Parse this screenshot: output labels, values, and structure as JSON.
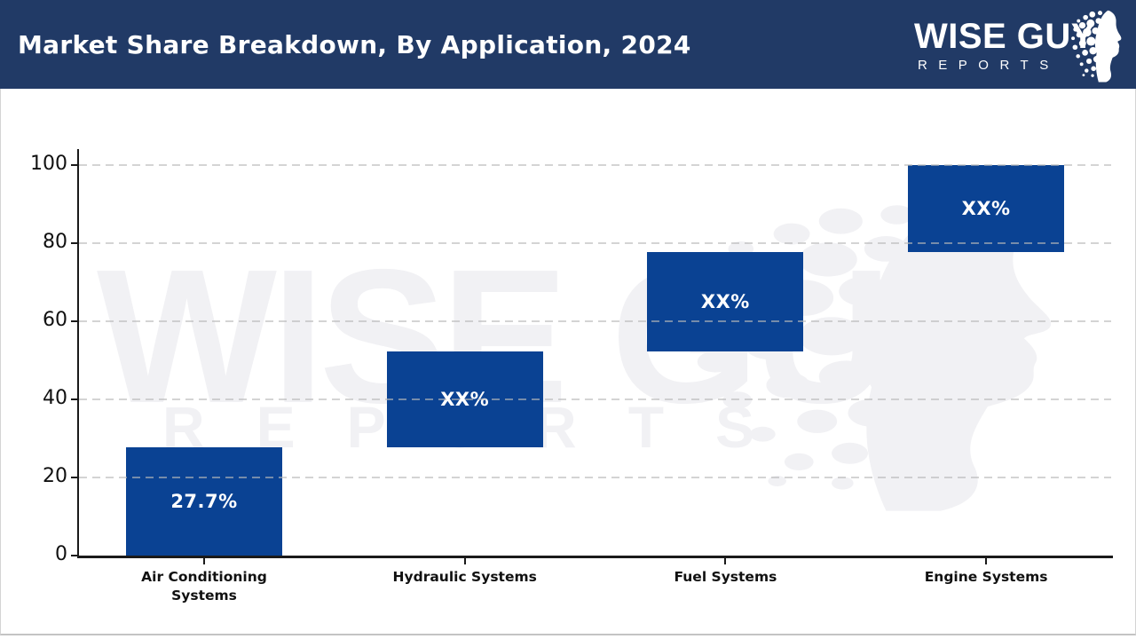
{
  "header": {
    "title": "Market Share Breakdown, By Application, 2024",
    "logo": {
      "line1": "WISE GUY",
      "line2": "REPORTS"
    }
  },
  "watermark": {
    "line1": "WISE GUY",
    "line2": "REPORTS"
  },
  "colors": {
    "header_bg": "#213a66",
    "title_text": "#ffffff",
    "bar_blue": "#0a4293",
    "axis": "#1a1a1a",
    "gridline": "#d8d8d8",
    "watermark": "#f1f1f4"
  },
  "chart_data": {
    "type": "bar",
    "subtype": "waterfall",
    "title": "Market Share Breakdown, By Application, 2024",
    "categories": [
      "Air Conditioning Systems",
      "Hydraulic Systems",
      "Fuel Systems",
      "Engine Systems"
    ],
    "segments": [
      {
        "category": "Air Conditioning Systems",
        "start": 0,
        "end": 27.7,
        "label": "27.7%"
      },
      {
        "category": "Hydraulic Systems",
        "start": 27.7,
        "end": 52.3,
        "label": "XX%"
      },
      {
        "category": "Fuel Systems",
        "start": 52.3,
        "end": 77.7,
        "label": "XX%"
      },
      {
        "category": "Engine Systems",
        "start": 77.7,
        "end": 100,
        "label": "XX%"
      }
    ],
    "y_ticks": [
      0,
      20,
      40,
      60,
      80,
      100
    ],
    "ylim": [
      0,
      104
    ],
    "bar_color": "#0a4293",
    "grid": true,
    "gridline_style": "dashed",
    "legend": false,
    "ylabel": "",
    "xlabel": ""
  }
}
